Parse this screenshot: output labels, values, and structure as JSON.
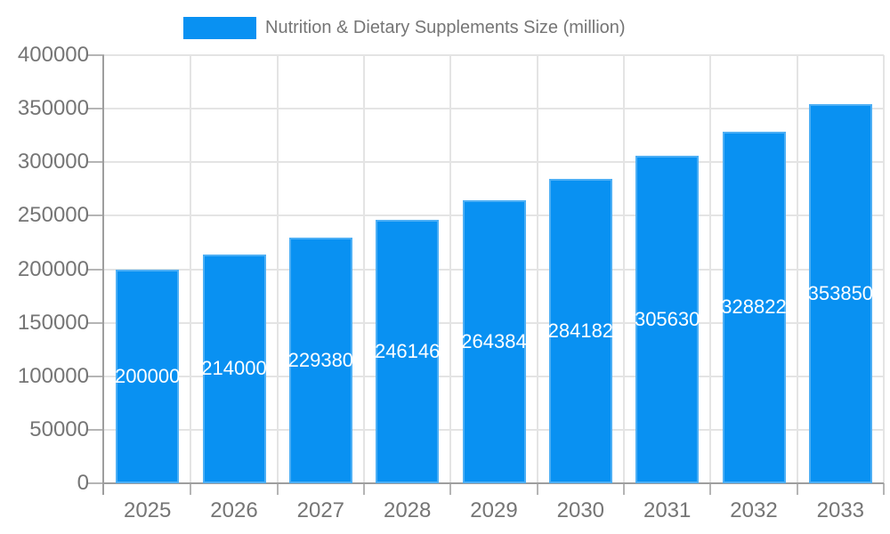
{
  "legend": {
    "label": "Nutrition & Dietary Supplements Size (million)"
  },
  "chart_data": {
    "type": "bar",
    "title": "Nutrition & Dietary Supplements Size (million)",
    "series": [
      {
        "name": "Nutrition & Dietary Supplements Size (million)",
        "values": [
          200000,
          214000,
          229380,
          246146,
          264384,
          284182,
          305630,
          328822,
          353850
        ]
      }
    ],
    "categories": [
      "2025",
      "2026",
      "2027",
      "2028",
      "2029",
      "2030",
      "2031",
      "2032",
      "2033"
    ],
    "bar_value_labels": [
      "200000",
      "214000",
      "229380",
      "246146",
      "264384",
      "284182",
      "305630",
      "328822",
      "353850"
    ],
    "xlabel": "",
    "ylabel": "",
    "ylim": [
      0,
      400000
    ],
    "yticks": [
      0,
      50000,
      100000,
      150000,
      200000,
      250000,
      300000,
      350000,
      400000
    ],
    "ytick_labels": [
      "0",
      "50000",
      "100000",
      "150000",
      "200000",
      "250000",
      "300000",
      "350000",
      "400000"
    ],
    "grid": true,
    "legend_position": "top-center",
    "colors": {
      "bar": "#0991f2",
      "grid": "#e4e4e4",
      "axis": "#9e9e9e",
      "tick": "#b5b5b5",
      "text": "#757575",
      "bar_label_text": "#ffffff",
      "background": "#ffffff"
    }
  }
}
